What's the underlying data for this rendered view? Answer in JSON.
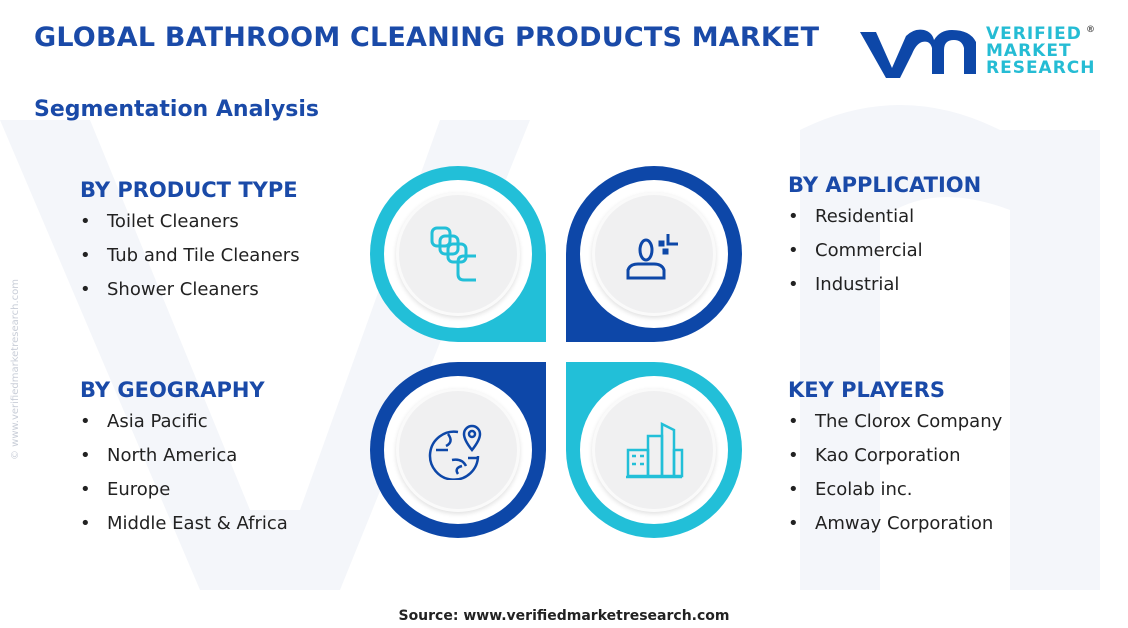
{
  "header": {
    "title": "GLOBAL BATHROOM CLEANING PRODUCTS MARKET",
    "subtitle": "Segmentation Analysis"
  },
  "logo": {
    "lines": [
      "VERIFIED",
      "MARKET",
      "RESEARCH"
    ],
    "registered": "®"
  },
  "side_watermark": "© www.verifiedmarketresearch.com",
  "colors": {
    "dark_blue": "#0d47a8",
    "cyan": "#22bfd8",
    "title_blue": "#1a4aa8"
  },
  "segments": [
    {
      "heading": "BY PRODUCT TYPE",
      "icon": "cleaning-pads-icon",
      "items": [
        "Toilet Cleaners",
        "Tub and Tile Cleaners",
        "Shower Cleaners"
      ]
    },
    {
      "heading": "BY APPLICATION",
      "icon": "user-icon",
      "items": [
        "Residential",
        "Commercial",
        "Industrial"
      ]
    },
    {
      "heading": "BY GEOGRAPHY",
      "icon": "globe-pin-icon",
      "items": [
        "Asia Pacific",
        "North America",
        "Europe",
        "Middle East & Africa"
      ]
    },
    {
      "heading": "KEY PLAYERS",
      "icon": "buildings-icon",
      "items": [
        "The Clorox Company",
        "Kao Corporation",
        "Ecolab inc.",
        "Amway Corporation"
      ]
    }
  ],
  "footer": {
    "source": "Source: www.verifiedmarketresearch.com"
  }
}
